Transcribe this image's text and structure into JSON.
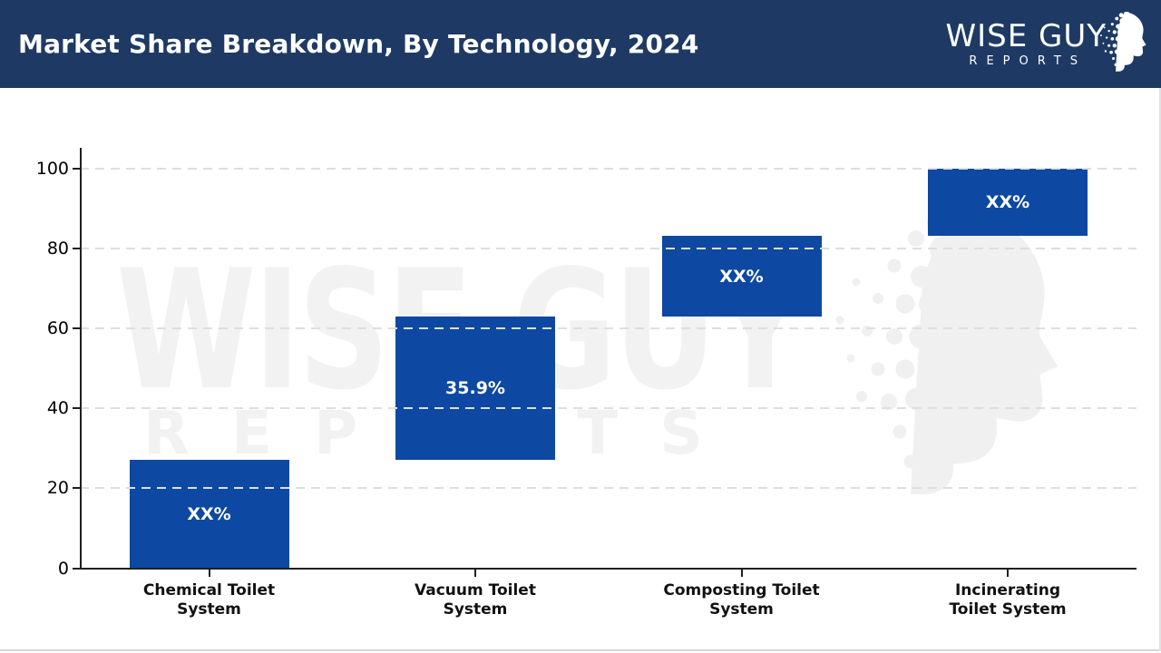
{
  "header": {
    "title": "Market Share Breakdown, By Technology, 2024",
    "bg_color": "#1e3a64",
    "logo": {
      "line1": "WISE GUY",
      "line2": "REPORTS"
    }
  },
  "watermark": {
    "line1": "WISE GUY",
    "line2": "REPORTS"
  },
  "chart_data": {
    "type": "bar",
    "variant": "floating-segment-waterfall",
    "title": "Market Share Breakdown, By Technology, 2024",
    "categories": [
      "Chemical Toilet System",
      "Vacuum Toilet System",
      "Composting Toilet System",
      "Incinerating Toilet System"
    ],
    "category_label_lines": [
      [
        "Chemical Toilet",
        "System"
      ],
      [
        "Vacuum Toilet",
        "System"
      ],
      [
        "Composting Toilet",
        "System"
      ],
      [
        "Incinerating",
        "Toilet System"
      ]
    ],
    "bars": [
      {
        "category": "Chemical Toilet System",
        "start": 0,
        "end": 27,
        "value_label": "XX%"
      },
      {
        "category": "Vacuum Toilet System",
        "start": 27,
        "end": 62.9,
        "value_label": "35.9%"
      },
      {
        "category": "Composting Toilet System",
        "start": 62.9,
        "end": 83,
        "value_label": "XX%"
      },
      {
        "category": "Incinerating Toilet System",
        "start": 83,
        "end": 100,
        "value_label": "XX%"
      }
    ],
    "xlabel": "",
    "ylabel": "",
    "ylim": [
      0,
      100
    ],
    "yticks": [
      0,
      20,
      40,
      60,
      80,
      100
    ],
    "grid": "horizontal-dashed",
    "legend": "none",
    "colors": {
      "bar": "#0d48a2",
      "bar_label": "#ffffff",
      "gridline": "#dedede",
      "axis": "#1f1f1f",
      "tick_label": "#000000"
    }
  }
}
